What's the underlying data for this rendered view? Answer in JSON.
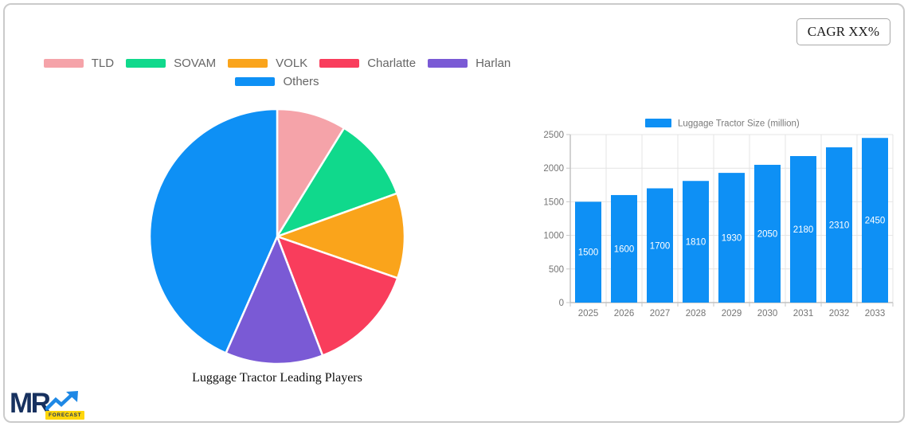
{
  "header": {
    "cagr_label": "CAGR XX%"
  },
  "logo": {
    "text": "MR",
    "badge_text": "FORECAST",
    "navy": "#17315F",
    "arrow_blue": "#1E88E5",
    "badge_yellow": "#FFD60B"
  },
  "chart_data": [
    {
      "type": "pie",
      "title": "Luggage Tractor Leading Players",
      "legend_position": "top",
      "legend_rows": [
        [
          0,
          1,
          2,
          3,
          4
        ],
        [
          5
        ]
      ],
      "start_angle_deg": 0,
      "direction": "clockwise",
      "slices": [
        {
          "label": "TLD",
          "share_pct": 8.8,
          "color": "#F5A3A9"
        },
        {
          "label": "SOVAM",
          "share_pct": 10.7,
          "color": "#10D98C"
        },
        {
          "label": "VOLK",
          "share_pct": 10.8,
          "color": "#FAA41B"
        },
        {
          "label": "Charlatte",
          "share_pct": 13.9,
          "color": "#F93D5C"
        },
        {
          "label": "Harlan",
          "share_pct": 12.4,
          "color": "#7A5AD5"
        },
        {
          "label": "Others",
          "share_pct": 43.4,
          "color": "#0E90F5"
        }
      ]
    },
    {
      "type": "bar",
      "legend_label": "Luggage Tractor Size (million)",
      "bar_color": "#0E90F5",
      "value_label_color": "#FFFFFF",
      "categories": [
        "2025",
        "2026",
        "2027",
        "2028",
        "2029",
        "2030",
        "2031",
        "2032",
        "2033"
      ],
      "values": [
        1500,
        1600,
        1700,
        1810,
        1930,
        2050,
        2180,
        2310,
        2450
      ],
      "y_ticks": [
        0,
        500,
        1000,
        1500,
        2000,
        2500
      ],
      "ylim": [
        0,
        2500
      ],
      "grid": true,
      "bar_label_position": "inside-middle",
      "axis_text_color": "#757575"
    }
  ]
}
